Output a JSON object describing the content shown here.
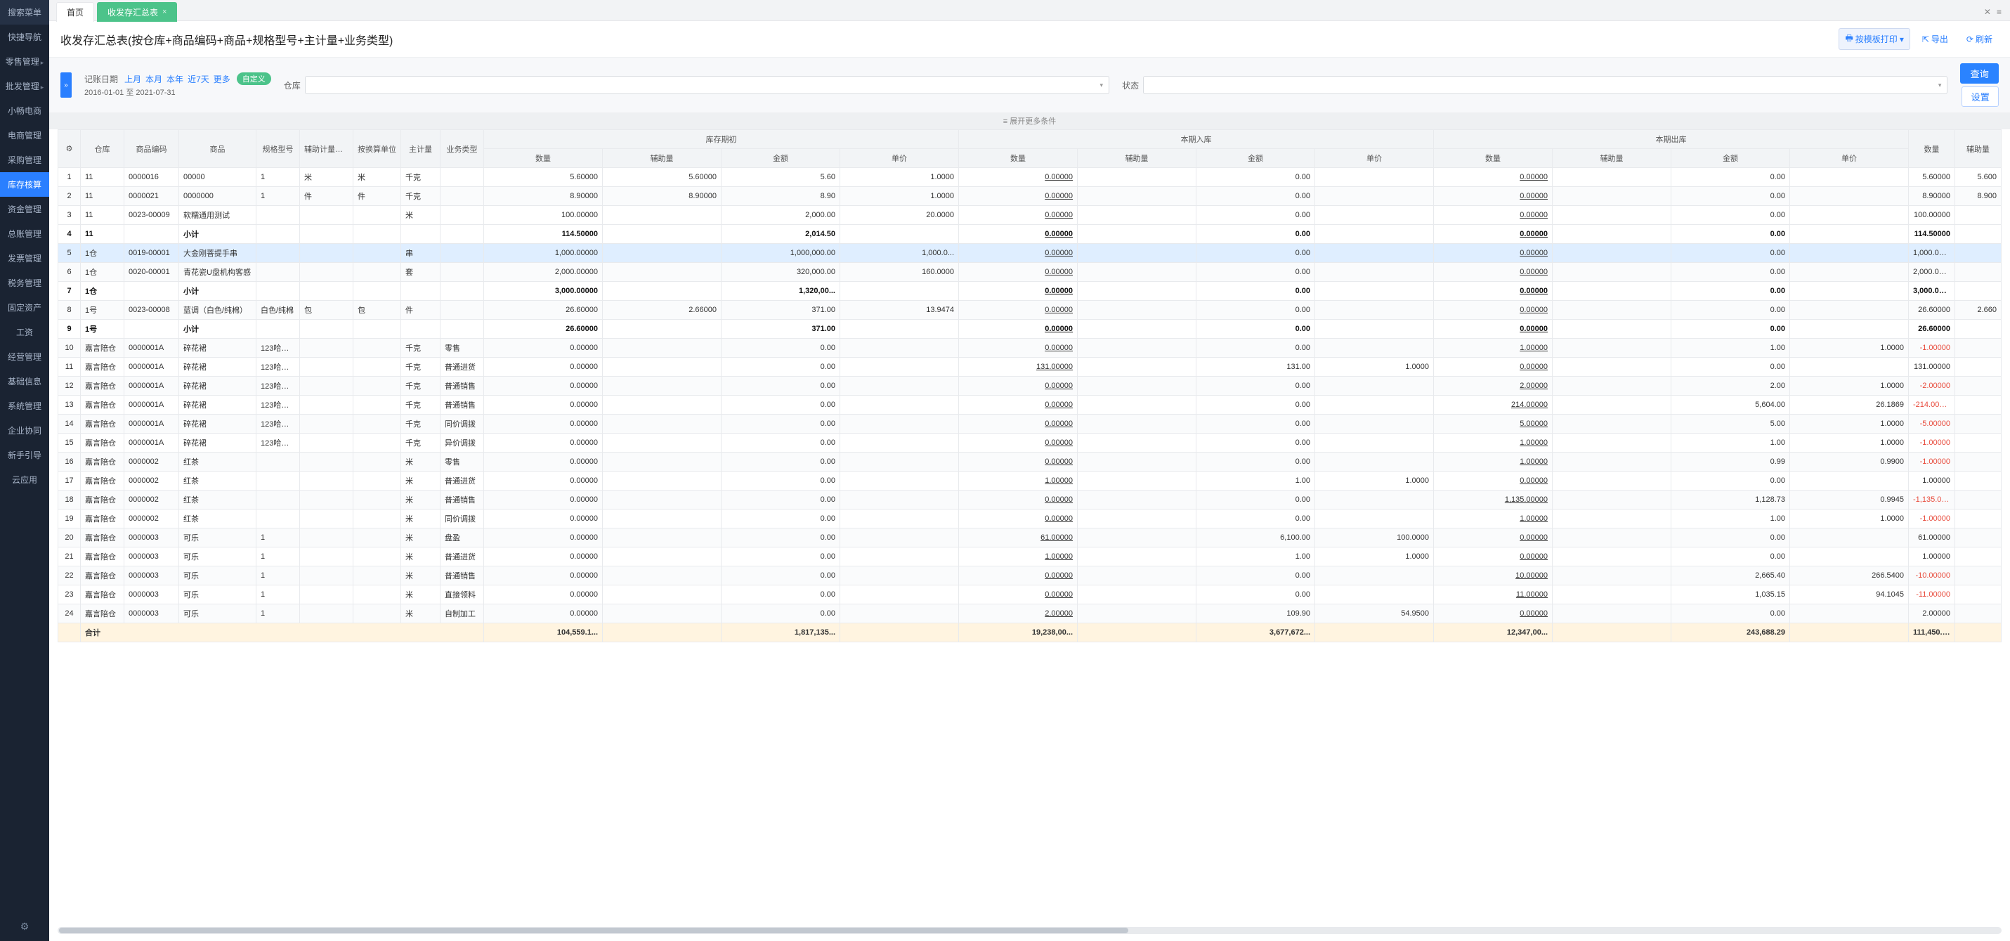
{
  "sidebar": {
    "items": [
      {
        "label": "搜索菜单"
      },
      {
        "label": "快捷导航"
      },
      {
        "label": "零售管理",
        "caret": true
      },
      {
        "label": "批发管理",
        "caret": true
      },
      {
        "label": "小畅电商"
      },
      {
        "label": "电商管理"
      },
      {
        "label": "采购管理"
      },
      {
        "label": "库存核算",
        "active": true
      },
      {
        "label": "资金管理"
      },
      {
        "label": "总账管理"
      },
      {
        "label": "发票管理"
      },
      {
        "label": "税务管理"
      },
      {
        "label": "固定资产"
      },
      {
        "label": "工资"
      },
      {
        "label": "经营管理"
      },
      {
        "label": "基础信息"
      },
      {
        "label": "系统管理"
      },
      {
        "label": "企业协同"
      },
      {
        "label": "新手引导"
      },
      {
        "label": "云应用"
      }
    ]
  },
  "tabs": [
    {
      "label": "首页",
      "closable": false
    },
    {
      "label": "收发存汇总表",
      "closable": true,
      "active": true
    }
  ],
  "page_title": "收发存汇总表(按仓库+商品编码+商品+规格型号+主计量+业务类型)",
  "header_actions": {
    "print": "按模板打印",
    "export": "导出",
    "refresh": "刷新"
  },
  "filter": {
    "date_label": "记账日期",
    "quick_links": [
      "上月",
      "本月",
      "本年",
      "近7天",
      "更多"
    ],
    "badge": "自定义",
    "date_range": "2016-01-01 至 2021-07-31",
    "warehouse_label": "仓库",
    "status_label": "状态",
    "search_btn": "查询",
    "setting_btn": "设置"
  },
  "more_bar": "≡  展开更多条件",
  "groups": {
    "open": "库存期初",
    "in": "本期入库",
    "out": "本期出库"
  },
  "columns": {
    "gear": "⚙",
    "wh": "仓库",
    "code": "商品编码",
    "name": "商品",
    "spec": "规格型号",
    "aux": "辅助计量单位1",
    "auxu": "按换算单位",
    "mainu": "主计量",
    "btype": "业务类型",
    "qty": "数量",
    "aux_qty": "辅助量",
    "amt": "金额",
    "price": "单价"
  },
  "rows": [
    {
      "idx": "1",
      "wh": "11",
      "code": "0000016",
      "name": "00000",
      "spec": "1",
      "aux": "米",
      "auxu": "米",
      "mainu": "千克",
      "btype": "",
      "o_qty": "5.60000",
      "o_aux": "5.60000",
      "o_amt": "5.60",
      "o_pr": "1.0000",
      "i_qty": "0.00000",
      "i_aux": "",
      "i_amt": "0.00",
      "i_pr": "",
      "x_qty": "0.00000",
      "x_aux": "",
      "x_amt": "0.00",
      "x_pr": "",
      "e_qty": "5.60000",
      "e_aux": "5.600"
    },
    {
      "idx": "2",
      "wh": "11",
      "code": "0000021",
      "name": "0000000",
      "spec": "1",
      "aux": "件",
      "auxu": "件",
      "mainu": "千克",
      "btype": "",
      "o_qty": "8.90000",
      "o_aux": "8.90000",
      "o_amt": "8.90",
      "o_pr": "1.0000",
      "i_qty": "0.00000",
      "i_aux": "",
      "i_amt": "0.00",
      "i_pr": "",
      "x_qty": "0.00000",
      "x_aux": "",
      "x_amt": "0.00",
      "x_pr": "",
      "e_qty": "8.90000",
      "e_aux": "8.900"
    },
    {
      "idx": "3",
      "wh": "11",
      "code": "0023-00009",
      "name": "软糯通用测试",
      "spec": "",
      "aux": "",
      "auxu": "",
      "mainu": "米",
      "btype": "",
      "o_qty": "100.00000",
      "o_aux": "",
      "o_amt": "2,000.00",
      "o_pr": "20.0000",
      "i_qty": "0.00000",
      "i_aux": "",
      "i_amt": "0.00",
      "i_pr": "",
      "x_qty": "0.00000",
      "x_aux": "",
      "x_amt": "0.00",
      "x_pr": "",
      "e_qty": "100.00000",
      "e_aux": ""
    },
    {
      "idx": "4",
      "wh": "11",
      "code": "",
      "name": "小计",
      "subtotal": true,
      "o_qty": "114.50000",
      "o_amt": "2,014.50",
      "i_qty": "0.00000",
      "i_amt": "0.00",
      "x_qty": "0.00000",
      "x_amt": "0.00",
      "e_qty": "114.50000"
    },
    {
      "idx": "5",
      "wh": "1仓",
      "code": "0019-00001",
      "name": "大金刚菩提手串",
      "spec": "",
      "aux": "",
      "auxu": "",
      "mainu": "串",
      "btype": "",
      "o_qty": "1,000.00000",
      "o_aux": "",
      "o_amt": "1,000,000.00",
      "o_pr": "1,000.0...",
      "i_qty": "0.00000",
      "i_aux": "",
      "i_amt": "0.00",
      "i_pr": "",
      "x_qty": "0.00000",
      "x_aux": "",
      "x_amt": "0.00",
      "x_pr": "",
      "e_qty": "1,000.00000",
      "e_aux": "",
      "hi": true
    },
    {
      "idx": "6",
      "wh": "1仓",
      "code": "0020-00001",
      "name": "青花瓷U盘机构客感",
      "spec": "",
      "aux": "",
      "auxu": "",
      "mainu": "套",
      "btype": "",
      "o_qty": "2,000.00000",
      "o_aux": "",
      "o_amt": "320,000.00",
      "o_pr": "160.0000",
      "i_qty": "0.00000",
      "i_aux": "",
      "i_amt": "0.00",
      "i_pr": "",
      "x_qty": "0.00000",
      "x_aux": "",
      "x_amt": "0.00",
      "x_pr": "",
      "e_qty": "2,000.00000",
      "e_aux": ""
    },
    {
      "idx": "7",
      "wh": "1仓",
      "code": "",
      "name": "小计",
      "subtotal": true,
      "o_qty": "3,000.00000",
      "o_amt": "1,320,00...",
      "i_qty": "0.00000",
      "i_amt": "0.00",
      "x_qty": "0.00000",
      "x_amt": "0.00",
      "e_qty": "3,000.00000"
    },
    {
      "idx": "8",
      "wh": "1号",
      "code": "0023-00008",
      "name": "蓝调（白色/纯棉）",
      "spec": "白色/纯棉",
      "aux": "包",
      "auxu": "包",
      "mainu": "件",
      "btype": "",
      "o_qty": "26.60000",
      "o_aux": "2.66000",
      "o_amt": "371.00",
      "o_pr": "13.9474",
      "i_qty": "0.00000",
      "i_aux": "",
      "i_amt": "0.00",
      "i_pr": "",
      "x_qty": "0.00000",
      "x_aux": "",
      "x_amt": "0.00",
      "x_pr": "",
      "e_qty": "26.60000",
      "e_aux": "2.660"
    },
    {
      "idx": "9",
      "wh": "1号",
      "code": "",
      "name": "小计",
      "subtotal": true,
      "o_qty": "26.60000",
      "o_amt": "371.00",
      "i_qty": "0.00000",
      "i_amt": "0.00",
      "x_qty": "0.00000",
      "x_amt": "0.00",
      "e_qty": "26.60000"
    },
    {
      "idx": "10",
      "wh": "嘉言陪仓",
      "code": "0000001A",
      "name": "碎花裙",
      "spec": "123哈哈哈...",
      "aux": "",
      "auxu": "",
      "mainu": "千克",
      "btype": "零售",
      "o_qty": "0.00000",
      "o_aux": "",
      "o_amt": "0.00",
      "o_pr": "",
      "i_qty": "0.00000",
      "i_aux": "",
      "i_amt": "0.00",
      "i_pr": "",
      "x_qty": "1.00000",
      "x_aux": "",
      "x_amt": "1.00",
      "x_pr": "1.0000",
      "e_qty": "-1.00000",
      "neg": true
    },
    {
      "idx": "11",
      "wh": "嘉言陪仓",
      "code": "0000001A",
      "name": "碎花裙",
      "spec": "123哈哈哈...",
      "aux": "",
      "auxu": "",
      "mainu": "千克",
      "btype": "普通进货",
      "o_qty": "0.00000",
      "o_aux": "",
      "o_amt": "0.00",
      "o_pr": "",
      "i_qty": "131.00000",
      "i_aux": "",
      "i_amt": "131.00",
      "i_pr": "1.0000",
      "x_qty": "0.00000",
      "x_aux": "",
      "x_amt": "0.00",
      "x_pr": "",
      "e_qty": "131.00000"
    },
    {
      "idx": "12",
      "wh": "嘉言陪仓",
      "code": "0000001A",
      "name": "碎花裙",
      "spec": "123哈哈哈...",
      "aux": "",
      "auxu": "",
      "mainu": "千克",
      "btype": "普通销售",
      "o_qty": "0.00000",
      "o_aux": "",
      "o_amt": "0.00",
      "o_pr": "",
      "i_qty": "0.00000",
      "i_aux": "",
      "i_amt": "0.00",
      "i_pr": "",
      "x_qty": "2.00000",
      "x_aux": "",
      "x_amt": "2.00",
      "x_pr": "1.0000",
      "e_qty": "-2.00000",
      "neg": true
    },
    {
      "idx": "13",
      "wh": "嘉言陪仓",
      "code": "0000001A",
      "name": "碎花裙",
      "spec": "123哈哈哈...",
      "aux": "",
      "auxu": "",
      "mainu": "千克",
      "btype": "普通销售",
      "o_qty": "0.00000",
      "o_aux": "",
      "o_amt": "0.00",
      "o_pr": "",
      "i_qty": "0.00000",
      "i_aux": "",
      "i_amt": "0.00",
      "i_pr": "",
      "x_qty": "214.00000",
      "x_aux": "",
      "x_amt": "5,604.00",
      "x_pr": "26.1869",
      "e_qty": "-214.00000",
      "neg": true
    },
    {
      "idx": "14",
      "wh": "嘉言陪仓",
      "code": "0000001A",
      "name": "碎花裙",
      "spec": "123哈哈哈...",
      "aux": "",
      "auxu": "",
      "mainu": "千克",
      "btype": "同价调拨",
      "o_qty": "0.00000",
      "o_aux": "",
      "o_amt": "0.00",
      "o_pr": "",
      "i_qty": "0.00000",
      "i_aux": "",
      "i_amt": "0.00",
      "i_pr": "",
      "x_qty": "5.00000",
      "x_aux": "",
      "x_amt": "5.00",
      "x_pr": "1.0000",
      "e_qty": "-5.00000",
      "neg": true
    },
    {
      "idx": "15",
      "wh": "嘉言陪仓",
      "code": "0000001A",
      "name": "碎花裙",
      "spec": "123哈哈哈...",
      "aux": "",
      "auxu": "",
      "mainu": "千克",
      "btype": "异价调拨",
      "o_qty": "0.00000",
      "o_aux": "",
      "o_amt": "0.00",
      "o_pr": "",
      "i_qty": "0.00000",
      "i_aux": "",
      "i_amt": "0.00",
      "i_pr": "",
      "x_qty": "1.00000",
      "x_aux": "",
      "x_amt": "1.00",
      "x_pr": "1.0000",
      "e_qty": "-1.00000",
      "neg": true
    },
    {
      "idx": "16",
      "wh": "嘉言陪仓",
      "code": "0000002",
      "name": "红茶",
      "spec": "",
      "aux": "",
      "auxu": "",
      "mainu": "米",
      "btype": "零售",
      "o_qty": "0.00000",
      "o_aux": "",
      "o_amt": "0.00",
      "o_pr": "",
      "i_qty": "0.00000",
      "i_aux": "",
      "i_amt": "0.00",
      "i_pr": "",
      "x_qty": "1.00000",
      "x_aux": "",
      "x_amt": "0.99",
      "x_pr": "0.9900",
      "e_qty": "-1.00000",
      "neg": true
    },
    {
      "idx": "17",
      "wh": "嘉言陪仓",
      "code": "0000002",
      "name": "红茶",
      "spec": "",
      "aux": "",
      "auxu": "",
      "mainu": "米",
      "btype": "普通进货",
      "o_qty": "0.00000",
      "o_aux": "",
      "o_amt": "0.00",
      "o_pr": "",
      "i_qty": "1.00000",
      "i_aux": "",
      "i_amt": "1.00",
      "i_pr": "1.0000",
      "x_qty": "0.00000",
      "x_aux": "",
      "x_amt": "0.00",
      "x_pr": "",
      "e_qty": "1.00000"
    },
    {
      "idx": "18",
      "wh": "嘉言陪仓",
      "code": "0000002",
      "name": "红茶",
      "spec": "",
      "aux": "",
      "auxu": "",
      "mainu": "米",
      "btype": "普通销售",
      "o_qty": "0.00000",
      "o_aux": "",
      "o_amt": "0.00",
      "o_pr": "",
      "i_qty": "0.00000",
      "identifier": "",
      "i_amt": "0.00",
      "i_pr": "",
      "x_qty": "1,135.00000",
      "x_aux": "",
      "x_amt": "1,128.73",
      "x_pr": "0.9945",
      "e_qty": "-1,135.00000",
      "neg": true
    },
    {
      "idx": "19",
      "wh": "嘉言陪仓",
      "code": "0000002",
      "name": "红茶",
      "spec": "",
      "aux": "",
      "auxu": "",
      "mainu": "米",
      "btype": "同价调拨",
      "o_qty": "0.00000",
      "o_aux": "",
      "o_amt": "0.00",
      "o_pr": "",
      "i_qty": "0.00000",
      "i_aux": "",
      "i_amt": "0.00",
      "i_pr": "",
      "x_qty": "1.00000",
      "x_aux": "",
      "x_amt": "1.00",
      "x_pr": "1.0000",
      "e_qty": "-1.00000",
      "neg": true
    },
    {
      "idx": "20",
      "wh": "嘉言陪仓",
      "code": "0000003",
      "name": "可乐",
      "spec": "1",
      "aux": "",
      "auxu": "",
      "mainu": "米",
      "btype": "盘盈",
      "o_qty": "0.00000",
      "o_aux": "",
      "o_amt": "0.00",
      "o_pr": "",
      "i_qty": "61.00000",
      "i_aux": "",
      "i_amt": "6,100.00",
      "i_pr": "100.0000",
      "x_qty": "0.00000",
      "x_aux": "",
      "x_amt": "0.00",
      "x_pr": "",
      "e_qty": "61.00000"
    },
    {
      "idx": "21",
      "wh": "嘉言陪仓",
      "code": "0000003",
      "name": "可乐",
      "spec": "1",
      "aux": "",
      "auxu": "",
      "mainu": "米",
      "btype": "普通进货",
      "o_qty": "0.00000",
      "o_aux": "",
      "o_amt": "0.00",
      "o_pr": "",
      "i_qty": "1.00000",
      "i_aux": "",
      "i_amt": "1.00",
      "i_pr": "1.0000",
      "x_qty": "0.00000",
      "x_aux": "",
      "x_amt": "0.00",
      "x_pr": "",
      "e_qty": "1.00000"
    },
    {
      "idx": "22",
      "wh": "嘉言陪仓",
      "code": "0000003",
      "name": "可乐",
      "spec": "1",
      "aux": "",
      "auxu": "",
      "mainu": "米",
      "btype": "普通销售",
      "o_qty": "0.00000",
      "o_aux": "",
      "o_amt": "0.00",
      "o_pr": "",
      "i_qty": "0.00000",
      "i_aux": "",
      "i_amt": "0.00",
      "i_pr": "",
      "x_qty": "10.00000",
      "x_aux": "",
      "x_amt": "2,665.40",
      "x_pr": "266.5400",
      "e_qty": "-10.00000",
      "neg": true
    },
    {
      "idx": "23",
      "wh": "嘉言陪仓",
      "code": "0000003",
      "name": "可乐",
      "spec": "1",
      "aux": "",
      "auxu": "",
      "mainu": "米",
      "btype": "直接领料",
      "o_qty": "0.00000",
      "o_aux": "",
      "o_amt": "0.00",
      "o_pr": "",
      "i_qty": "0.00000",
      "i_aux": "",
      "i_amt": "0.00",
      "i_pr": "",
      "x_qty": "11.00000",
      "x_aux": "",
      "x_amt": "1,035.15",
      "x_pr": "94.1045",
      "e_qty": "-11.00000",
      "neg": true
    },
    {
      "idx": "24",
      "wh": "嘉言陪仓",
      "code": "0000003",
      "name": "可乐",
      "spec": "1",
      "aux": "",
      "auxu": "",
      "mainu": "米",
      "btype": "自制加工",
      "o_qty": "0.00000",
      "o_aux": "",
      "o_amt": "0.00",
      "o_pr": "",
      "i_qty": "2.00000",
      "i_aux": "",
      "i_amt": "109.90",
      "i_pr": "54.9500",
      "x_qty": "0.00000",
      "x_aux": "",
      "x_amt": "0.00",
      "x_pr": "",
      "e_qty": "2.00000"
    }
  ],
  "total": {
    "label": "合计",
    "o_qty": "104,559.1...",
    "o_amt": "1,817,135...",
    "i_qty": "19,238,00...",
    "i_amt": "3,677,672...",
    "x_qty": "12,347,00...",
    "x_amt": "243,688.29",
    "e_qty": "111,450.1..."
  }
}
